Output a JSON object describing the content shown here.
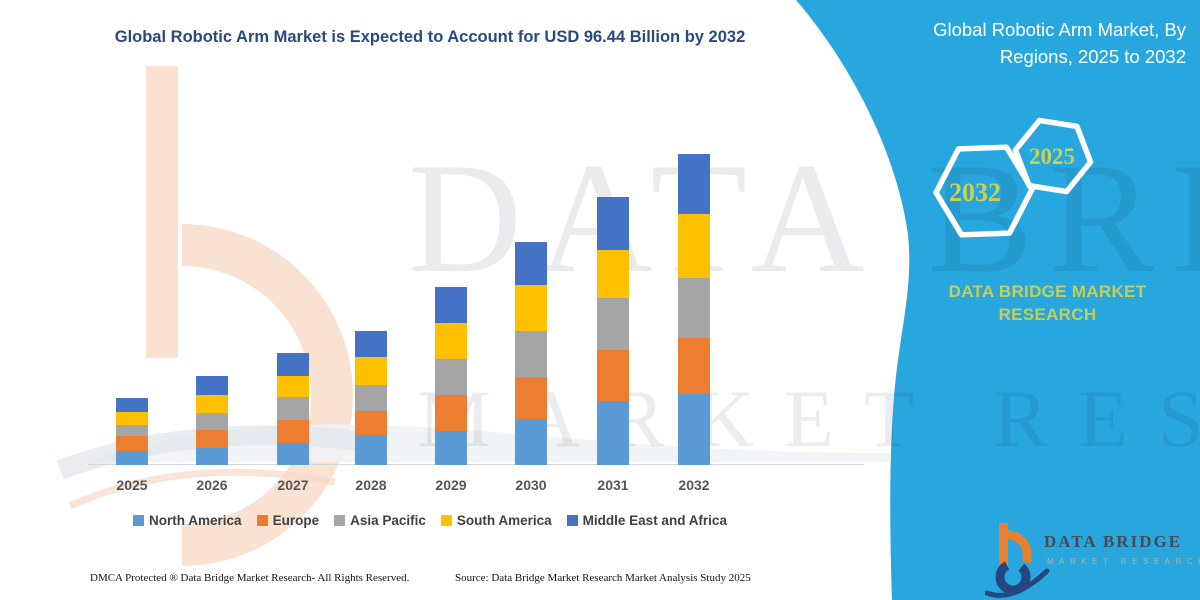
{
  "page": {
    "accent_cyan": "#28a7df",
    "title_navy": "#2a4a7d",
    "hex_label_yellow": "#ccd24f"
  },
  "chart_data": {
    "type": "bar",
    "stacked": true,
    "value_unit": "USD Billion",
    "title": "Global Robotic Arm Market is Expected to Account for USD 96.44 Billion by 2032",
    "xlabel": "",
    "ylabel": "",
    "ylim": [
      0,
      100
    ],
    "grid": false,
    "legend_position": "bottom",
    "categories": [
      "2025",
      "2026",
      "2027",
      "2028",
      "2029",
      "2030",
      "2031",
      "2032"
    ],
    "series": [
      {
        "name": "North America",
        "color": "#5B9BD5",
        "values": [
          4.3,
          5.3,
          6.8,
          9.3,
          10.6,
          14.2,
          19.8,
          22.0
        ]
      },
      {
        "name": "Europe",
        "color": "#ED7D31",
        "values": [
          4.7,
          5.6,
          7.1,
          7.4,
          11.2,
          13.2,
          16.0,
          17.5
        ]
      },
      {
        "name": "Asia Pacific",
        "color": "#A5A5A5",
        "values": [
          3.4,
          5.3,
          7.1,
          8.1,
          11.2,
          14.3,
          16.0,
          18.6
        ]
      },
      {
        "name": "South America",
        "color": "#FFC000",
        "values": [
          4.0,
          5.6,
          6.5,
          8.7,
          11.2,
          14.0,
          15.0,
          19.7
        ]
      },
      {
        "name": "Middle East and Africa",
        "color": "#4472C4",
        "values": [
          4.3,
          5.9,
          7.1,
          8.1,
          10.9,
          13.5,
          16.2,
          18.64
        ]
      }
    ],
    "total_2032": "96.44"
  },
  "right_panel": {
    "title_line1": "Global Robotic Arm Market, By",
    "title_line2": "Regions, 2025 to 2032",
    "hexagons": [
      {
        "label": "2032"
      },
      {
        "label": "2025"
      }
    ],
    "brand_line1": "DATA BRIDGE MARKET",
    "brand_line2": "RESEARCH"
  },
  "watermark": {
    "line1": "DATA BRIDGE",
    "line2": "MARKET RESEARCH"
  },
  "footer": {
    "left": "DMCA Protected ® Data Bridge Market Research-  All Rights Reserved.",
    "right": "Source: Data Bridge Market Research  Market Analysis Study 2025"
  },
  "logo": {
    "wordmark": "DATA BRIDGE",
    "subtext": "MARKET RESEARCH"
  }
}
